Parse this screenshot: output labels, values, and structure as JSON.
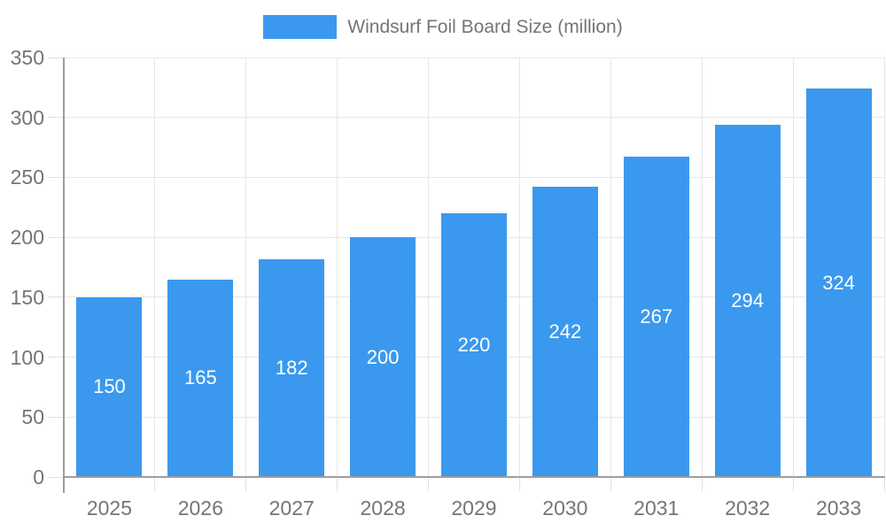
{
  "chart_data": {
    "type": "bar",
    "title": "Windsurf Foil Board Size (million)",
    "categories": [
      "2025",
      "2026",
      "2027",
      "2028",
      "2029",
      "2030",
      "2031",
      "2032",
      "2033"
    ],
    "values": [
      150,
      165,
      182,
      200,
      220,
      242,
      267,
      294,
      324
    ],
    "series": [
      {
        "name": "Windsurf Foil Board Size (million)",
        "values": [
          150,
          165,
          182,
          200,
          220,
          242,
          267,
          294,
          324
        ]
      }
    ],
    "xlabel": "",
    "ylabel": "",
    "ylim": [
      0,
      350
    ],
    "yticks": [
      0,
      50,
      100,
      150,
      200,
      250,
      300,
      350
    ],
    "grid": true,
    "legend_position": "top",
    "bar_label_position": "center",
    "colors": {
      "bar": "#3A99EE",
      "grid": "#E6E6E6",
      "tick": "#E0E0E0",
      "axis": "#9E9E9E",
      "label": "#757575",
      "value_label": "#FFFFFF",
      "background": "#FFFFFF"
    }
  }
}
